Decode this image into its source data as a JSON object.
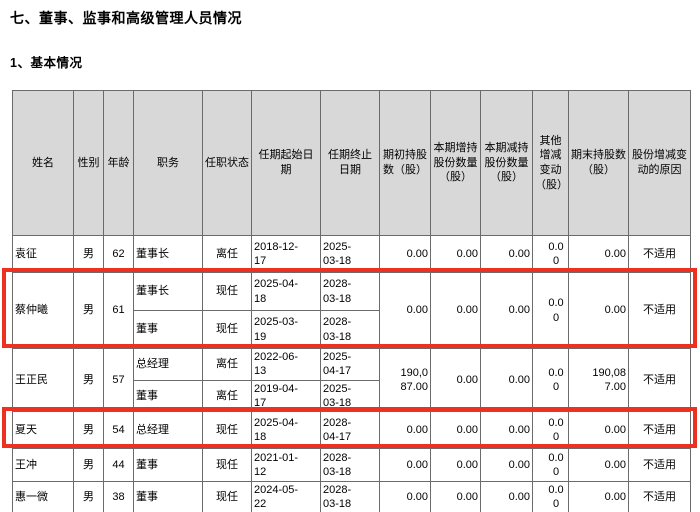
{
  "page": {
    "title": "七、董事、监事和高级管理人员情况",
    "subtitle": "1、基本情况"
  },
  "annotations": {
    "highlight_color": "#ed3020",
    "header_bg": "#d8d8d8"
  },
  "table": {
    "headers": [
      "姓名",
      "性别",
      "年龄",
      "职务",
      "任职状态",
      "任期起始日期",
      "任期终止日期",
      "期初持股数（股）",
      "本期增持股份数量（股）",
      "本期减持股份数量（股）",
      "其他增减变动（股）",
      "期末持股数（股）",
      "股份增减变动的原因"
    ],
    "people": [
      {
        "name": "袁征",
        "gender": "男",
        "age": "62",
        "positions": [
          {
            "title": "董事长",
            "status": "离任",
            "start": "2018-12-17",
            "end": "2025-03-18"
          }
        ],
        "shares_begin": "0.00",
        "shares_increase": "0.00",
        "shares_decrease": "0.00",
        "other_change": "0.00",
        "shares_end": "0.00",
        "reason": "不适用",
        "highlighted": false
      },
      {
        "name": "蔡仲曦",
        "gender": "男",
        "age": "61",
        "positions": [
          {
            "title": "董事长",
            "status": "现任",
            "start": "2025-04-18",
            "end": "2028-03-18"
          },
          {
            "title": "董事",
            "status": "现任",
            "start": "2025-03-19",
            "end": "2028-03-18"
          }
        ],
        "shares_begin": "0.00",
        "shares_increase": "0.00",
        "shares_decrease": "0.00",
        "other_change": "0.00",
        "shares_end": "0.00",
        "reason": "不适用",
        "highlighted": true
      },
      {
        "name": "王正民",
        "gender": "男",
        "age": "57",
        "positions": [
          {
            "title": "总经理",
            "status": "离任",
            "start": "2022-06-13",
            "end": "2025-04-17"
          },
          {
            "title": "董事",
            "status": "离任",
            "start": "2019-04-17",
            "end": "2025-03-18"
          }
        ],
        "shares_begin": "190,087.00",
        "shares_increase": "0.00",
        "shares_decrease": "0.00",
        "other_change": "0.00",
        "shares_end": "190,087.00",
        "reason": "不适用",
        "highlighted": false
      },
      {
        "name": "夏天",
        "gender": "男",
        "age": "54",
        "positions": [
          {
            "title": "总经理",
            "status": "现任",
            "start": "2025-04-18",
            "end": "2028-04-17"
          }
        ],
        "shares_begin": "0.00",
        "shares_increase": "0.00",
        "shares_decrease": "0.00",
        "other_change": "0.00",
        "shares_end": "0.00",
        "reason": "不适用",
        "highlighted": true
      },
      {
        "name": "王冲",
        "gender": "男",
        "age": "44",
        "positions": [
          {
            "title": "董事",
            "status": "现任",
            "start": "2021-01-12",
            "end": "2028-03-18"
          }
        ],
        "shares_begin": "0.00",
        "shares_increase": "0.00",
        "shares_decrease": "0.00",
        "other_change": "0.00",
        "shares_end": "0.00",
        "reason": "不适用",
        "highlighted": false
      },
      {
        "name": "惠一微",
        "gender": "男",
        "age": "38",
        "positions": [
          {
            "title": "董事",
            "status": "现任",
            "start": "2024-05-22",
            "end": "2028-03-18"
          }
        ],
        "shares_begin": "0.00",
        "shares_increase": "0.00",
        "shares_decrease": "0.00",
        "other_change": "0.00",
        "shares_end": "0.00",
        "reason": "不适用",
        "highlighted": false
      }
    ]
  }
}
